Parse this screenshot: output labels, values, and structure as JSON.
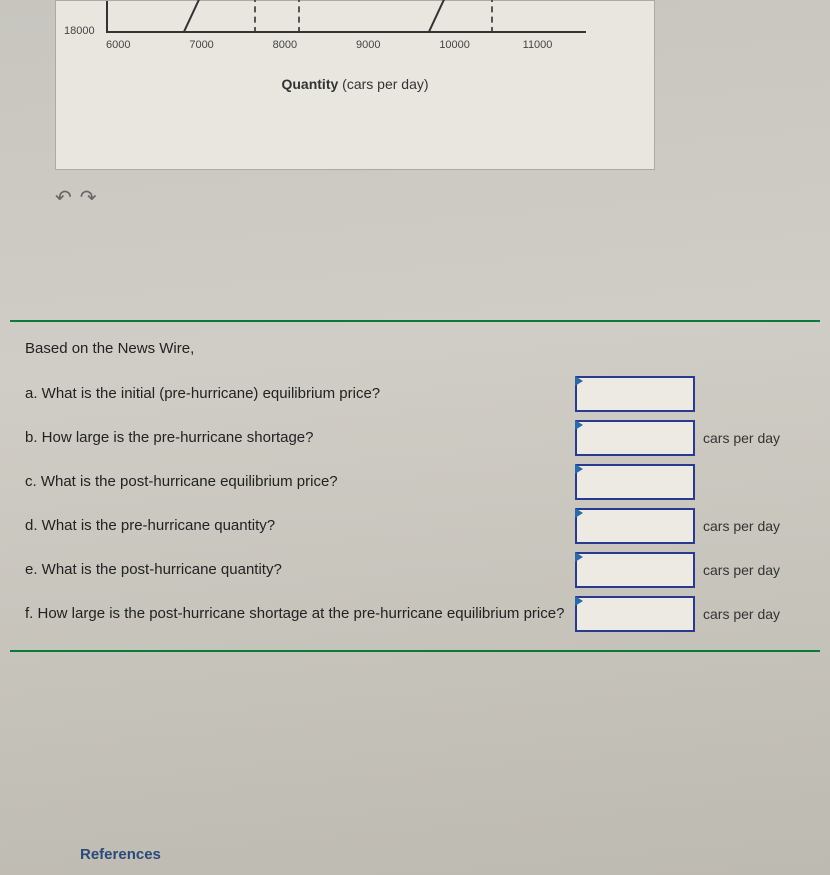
{
  "chart": {
    "y_tick": "18000",
    "x_ticks": [
      "6000",
      "7000",
      "8000",
      "9000",
      "10000",
      "11000"
    ],
    "axis_label_bold": "Quantity",
    "axis_label_rest": " (cars per day)"
  },
  "intro": "Based on the News Wire,",
  "questions": {
    "a": "a.  What is the initial (pre-hurricane) equilibrium price?",
    "b": "b.  How large is the pre-hurricane shortage?",
    "c": "c.  What is the post-hurricane equilibrium price?",
    "d": "d.  What is the pre-hurricane quantity?",
    "e": "e.  What is the post-hurricane quantity?",
    "f": "f.  How large is the post-hurricane shortage at the pre-hurricane equilibrium price?"
  },
  "units": {
    "a": "",
    "b": "cars per day",
    "c": "",
    "d": "cars per day",
    "e": "cars per day",
    "f": "cars per day"
  },
  "references": "References"
}
